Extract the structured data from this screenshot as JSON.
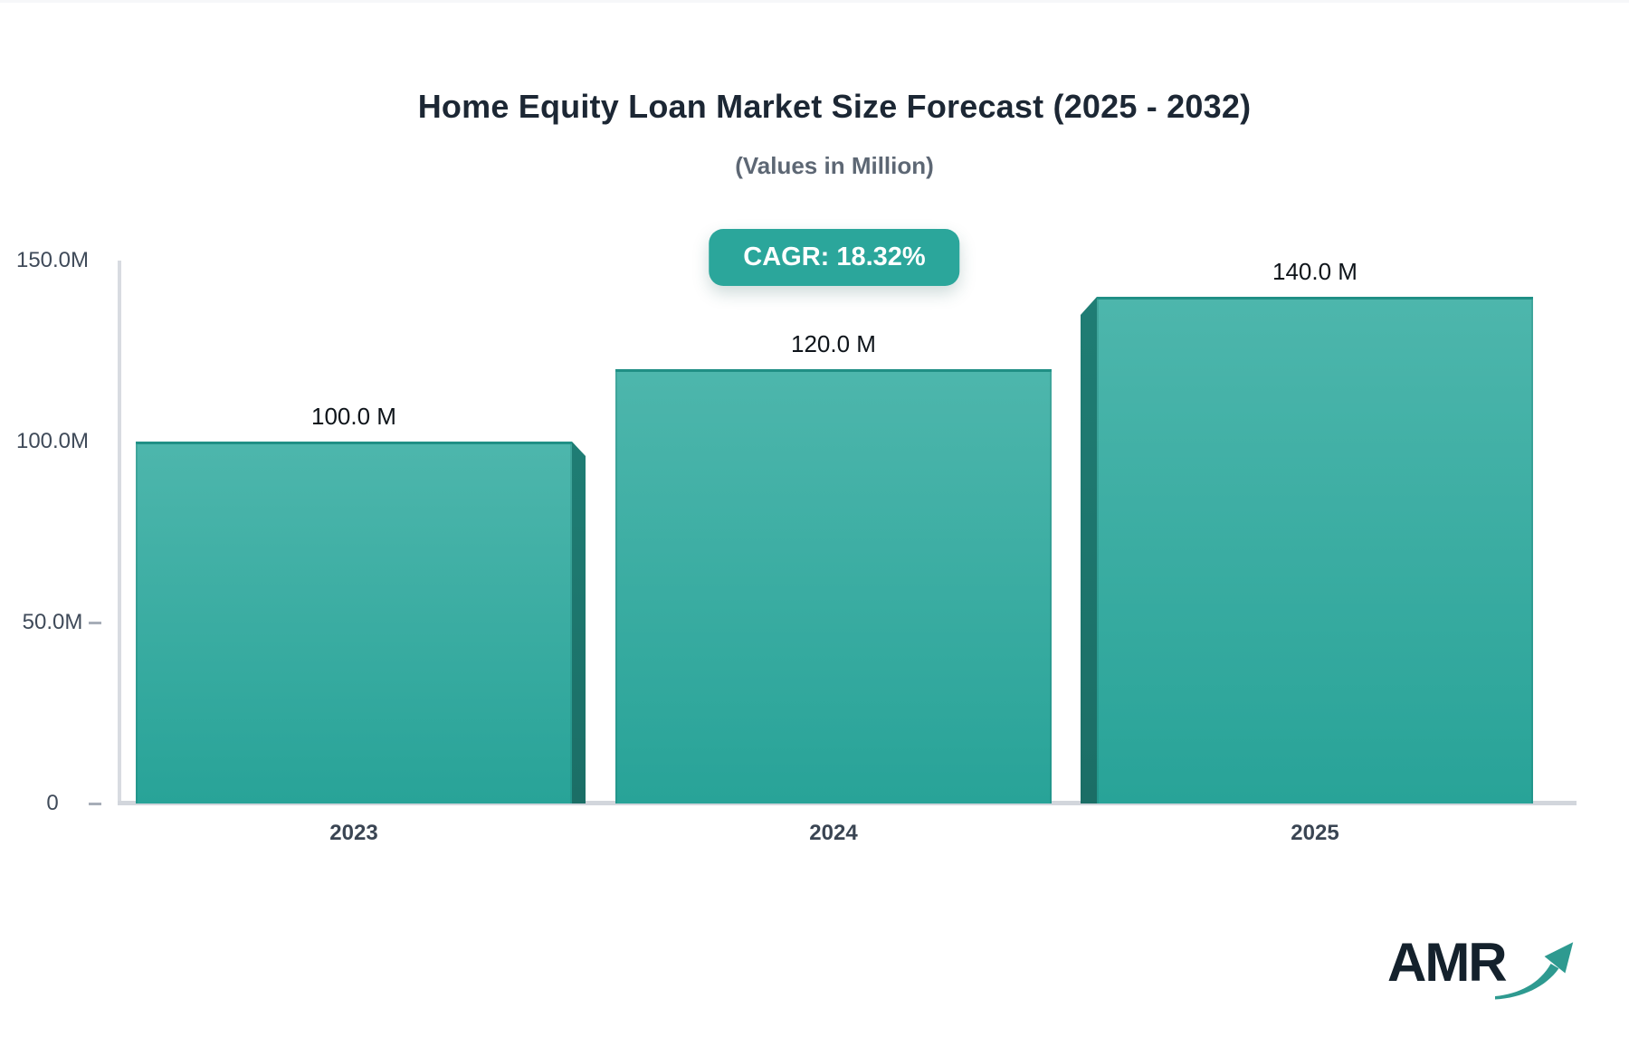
{
  "chart_data": {
    "type": "bar",
    "title": "Home Equity Loan Market Size Forecast (2025 - 2032)",
    "subtitle": "(Values in Million)",
    "cagr_label": "CAGR: 18.32%",
    "categories": [
      "2023",
      "2024",
      "2025"
    ],
    "values": [
      100,
      120,
      140
    ],
    "value_labels": [
      "100.0 M",
      "120.0 M",
      "140.0 M"
    ],
    "xlabel": "",
    "ylabel": "",
    "ylim": [
      0,
      150
    ],
    "yticks": [
      {
        "value": 150,
        "label": "150.0M"
      },
      {
        "value": 100,
        "label": "100.0M"
      },
      {
        "value": 50,
        "label": "50.0M"
      },
      {
        "value": 0,
        "label": "0"
      }
    ],
    "grid": false,
    "legend": false,
    "colors": {
      "bar_top": "#4db6ac",
      "bar_bottom": "#28a398",
      "bar_side": "#1f7d74",
      "bar_side_dark": "#1b6e66",
      "badge_bg": "#2ba69b",
      "axis": "#d5d8de"
    }
  },
  "logo": {
    "text": "AMR",
    "arrow_icon": "growth-arrow-icon",
    "arrow_color": "#2e9a90"
  }
}
